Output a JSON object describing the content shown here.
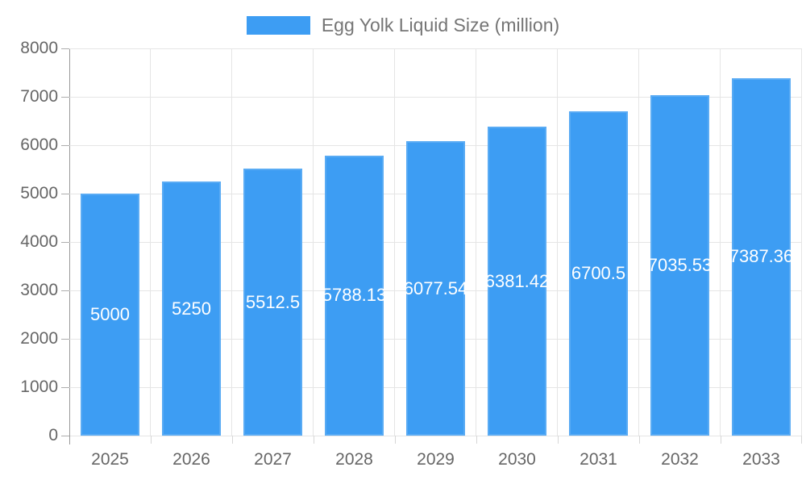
{
  "chart_data": {
    "type": "bar",
    "title": "",
    "legend": {
      "label": "Egg Yolk Liquid Size (million)",
      "position": "top"
    },
    "categories": [
      "2025",
      "2026",
      "2027",
      "2028",
      "2029",
      "2030",
      "2031",
      "2032",
      "2033"
    ],
    "series": [
      {
        "name": "Egg Yolk Liquid Size (million)",
        "values": [
          5000,
          5250,
          5512.5,
          5788.13,
          6077.54,
          6381.42,
          6700.5,
          7035.53,
          7387.36
        ],
        "display_values": [
          "5000",
          "5250",
          "5512.5",
          "5788.13",
          "6077.54",
          "6381.42",
          "6700.5",
          "7035.53",
          "7387.36"
        ],
        "color": "#3d9df3"
      }
    ],
    "xlabel": "",
    "ylabel": "",
    "ylim": [
      0,
      8000
    ],
    "yticks": [
      0,
      1000,
      2000,
      3000,
      4000,
      5000,
      6000,
      7000,
      8000
    ],
    "grid": true,
    "colors": {
      "bar": "#3d9df3",
      "bar_label_text": "#ffffff",
      "axis_text": "#666666",
      "legend_text": "#757575",
      "grid_line": "#e5e5e5",
      "axis_line": "#999999"
    }
  }
}
